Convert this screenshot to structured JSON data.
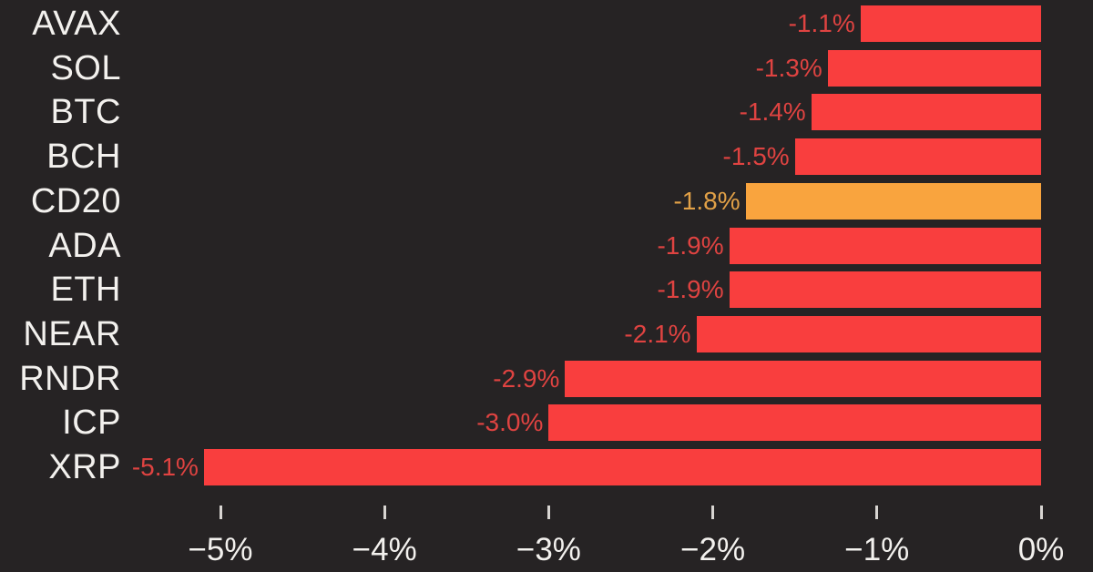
{
  "chart_data": {
    "type": "bar",
    "orientation": "horizontal",
    "title": "",
    "xlabel": "",
    "ylabel": "",
    "categories": [
      "AVAX",
      "SOL",
      "BTC",
      "BCH",
      "CD20",
      "ADA",
      "ETH",
      "NEAR",
      "RNDR",
      "ICP",
      "XRP"
    ],
    "values": [
      -1.1,
      -1.3,
      -1.4,
      -1.5,
      -1.8,
      -1.9,
      -1.9,
      -2.1,
      -2.9,
      -3.0,
      -5.1
    ],
    "value_labels": [
      "-1.1%",
      "-1.3%",
      "-1.4%",
      "-1.5%",
      "-1.8%",
      "-1.9%",
      "-1.9%",
      "-2.1%",
      "-2.9%",
      "-3.0%",
      "-5.1%"
    ],
    "highlight_category": "CD20",
    "xlim": [
      -5.55,
      0
    ],
    "x_ticks": [
      -5,
      -4,
      -3,
      -2,
      -1,
      0
    ],
    "x_tick_labels": [
      "−5%",
      "−4%",
      "−3%",
      "−2%",
      "−1%",
      "0%"
    ],
    "grid": false,
    "legend": false,
    "colors": {
      "background": "#262324",
      "bar": "#f93e3e",
      "highlight_bar": "#f9a43e",
      "value_label": "#df4341",
      "highlight_value_label": "#e2a147",
      "category_label": "#f3f1ee",
      "axis_label": "#f3f1ee",
      "tick": "#d8d5d2"
    }
  }
}
